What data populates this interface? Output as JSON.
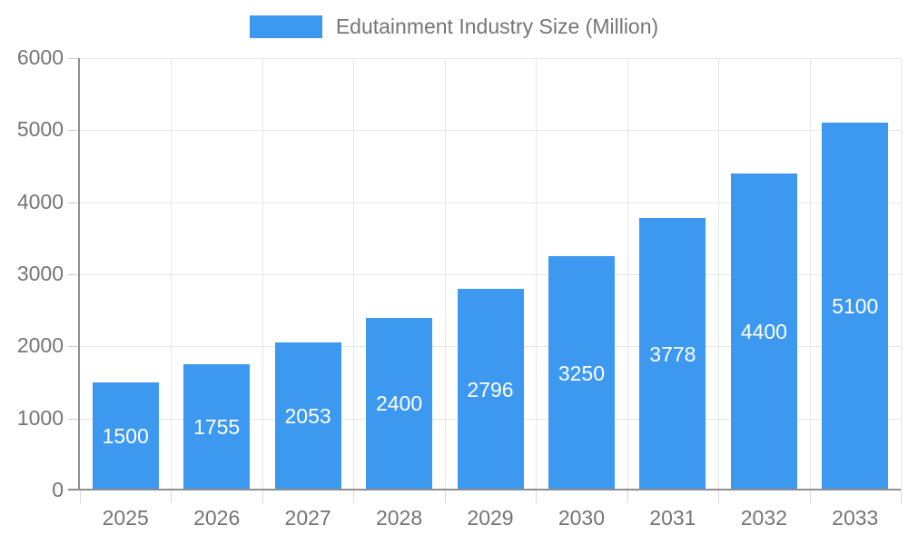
{
  "chart_data": {
    "type": "bar",
    "title": "Edutainment Industry Size (Million)",
    "series_name": "Edutainment Industry Size (Million)",
    "categories": [
      "2025",
      "2026",
      "2027",
      "2028",
      "2029",
      "2030",
      "2031",
      "2032",
      "2033"
    ],
    "values": [
      1500,
      1755,
      2053,
      2400,
      2796,
      3250,
      3778,
      4400,
      5100
    ],
    "xlabel": "",
    "ylabel": "",
    "ylim": [
      0,
      6000
    ],
    "ytick_step": 1000,
    "yticks": [
      "0",
      "1000",
      "2000",
      "3000",
      "4000",
      "5000",
      "6000"
    ],
    "grid": true,
    "legend_position": "top",
    "bar_color": "#3d99f0",
    "value_label_color": "#ffffff",
    "axis_text_color": "#757575",
    "gridline_color": "#e6e6e6",
    "axis_line_color": "#8f8f8f",
    "background_color": "#ffffff"
  }
}
